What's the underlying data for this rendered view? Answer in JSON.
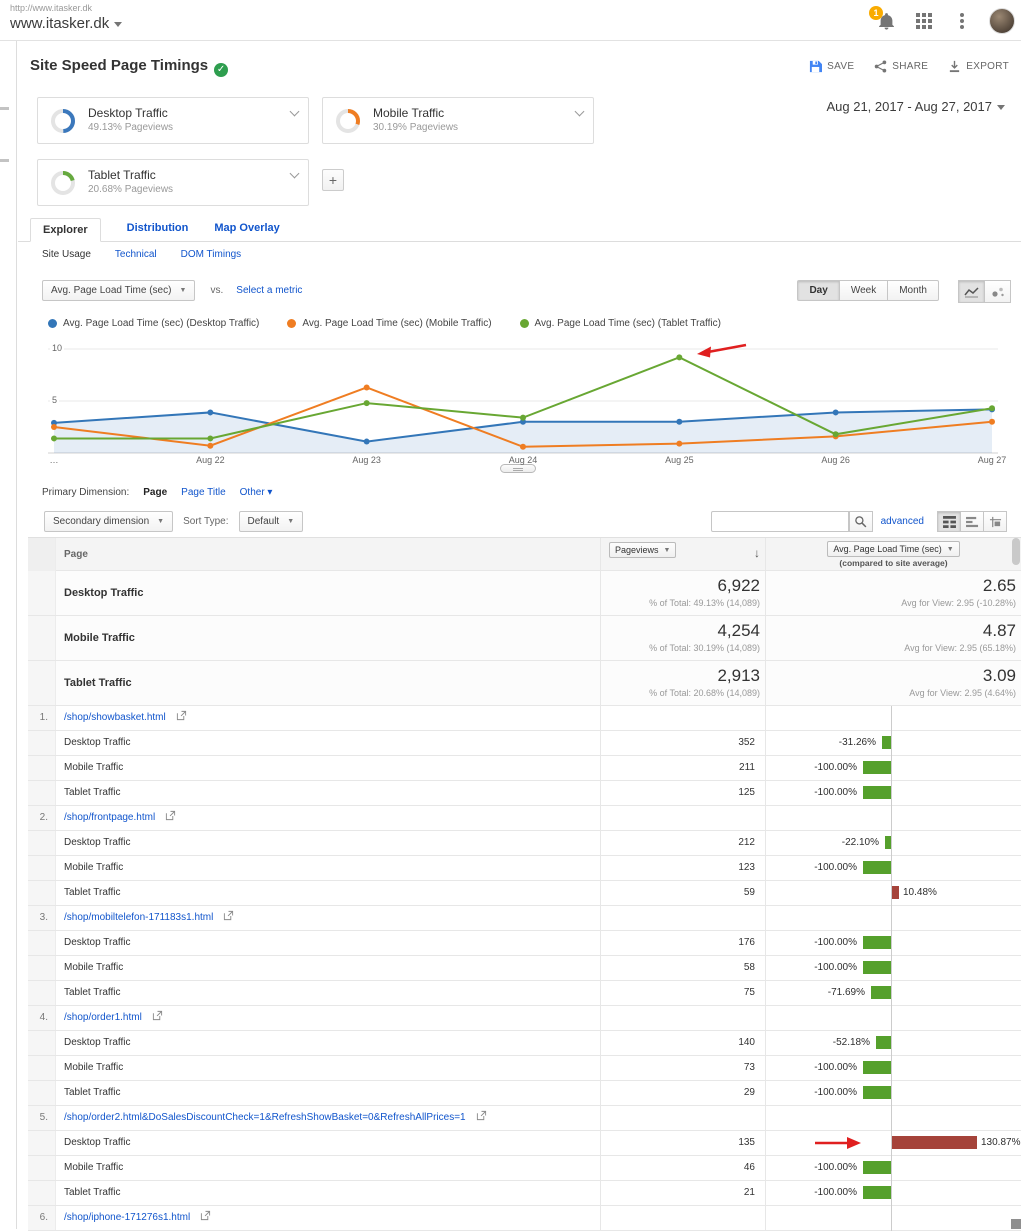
{
  "topbar": {
    "url": "http://www.itasker.dk",
    "account": "www.itasker.dk",
    "notification_count": "1"
  },
  "header": {
    "title": "Site Speed Page Timings",
    "save_label": "SAVE",
    "share_label": "SHARE",
    "export_label": "EXPORT"
  },
  "date_range": "Aug 21, 2017 - Aug 27, 2017",
  "add_segment_label": "+",
  "segments": [
    {
      "name": "Desktop Traffic",
      "detail": "49.13% Pageviews",
      "color": "#3b78bc",
      "fraction": 0.4913
    },
    {
      "name": "Mobile Traffic",
      "detail": "30.19% Pageviews",
      "color": "#ef7d22",
      "fraction": 0.3019
    },
    {
      "name": "Tablet Traffic",
      "detail": "20.68% Pageviews",
      "color": "#66a93f",
      "fraction": 0.2068
    }
  ],
  "tabs": [
    {
      "label": "Explorer",
      "active": true
    },
    {
      "label": "Distribution",
      "active": false
    },
    {
      "label": "Map Overlay",
      "active": false
    }
  ],
  "subtabs": [
    {
      "label": "Site Usage",
      "active": true
    },
    {
      "label": "Technical",
      "active": false
    },
    {
      "label": "DOM Timings",
      "active": false
    }
  ],
  "metric_bar": {
    "metric_dropdown": "Avg. Page Load Time (sec)",
    "vs_label": "vs.",
    "select_metric": "Select a metric",
    "granularity": [
      {
        "label": "Day",
        "active": true
      },
      {
        "label": "Week",
        "active": false
      },
      {
        "label": "Month",
        "active": false
      }
    ]
  },
  "chart_data": {
    "type": "line",
    "x": [
      "…",
      "Aug 22",
      "Aug 23",
      "Aug 24",
      "Aug 25",
      "Aug 26",
      "Aug 27"
    ],
    "ylim": [
      0,
      10
    ],
    "yticks": [
      {
        "v": 10,
        "label": "10"
      },
      {
        "v": 5,
        "label": "5"
      }
    ],
    "grid": true,
    "legend_position": "top",
    "series": [
      {
        "name": "Avg. Page Load Time (sec) (Desktop Traffic)",
        "color": "#3376b8",
        "area": true,
        "values": [
          2.9,
          3.9,
          1.1,
          3.0,
          3.0,
          3.9,
          4.2
        ]
      },
      {
        "name": "Avg. Page Load Time (sec) (Mobile Traffic)",
        "color": "#ef7d22",
        "area": false,
        "values": [
          2.5,
          0.7,
          6.3,
          0.6,
          0.9,
          1.6,
          3.0
        ]
      },
      {
        "name": "Avg. Page Load Time (sec) (Tablet Traffic)",
        "color": "#68a733",
        "area": false,
        "values": [
          1.4,
          1.4,
          4.8,
          3.4,
          9.2,
          1.8,
          4.3
        ]
      }
    ]
  },
  "annotations": [
    {
      "type": "arrow",
      "color": "#e01f1f",
      "points_to": "Tablet Traffic chart peak on Aug 25"
    },
    {
      "type": "arrow",
      "color": "#e01f1f",
      "points_to": "Desktop Traffic 130.87% bar in row 5"
    }
  ],
  "primary_dimension": {
    "label": "Primary Dimension:",
    "options": [
      {
        "label": "Page",
        "active": true
      },
      {
        "label": "Page Title",
        "active": false
      },
      {
        "label": "Other",
        "active": false,
        "caret": true
      }
    ]
  },
  "toolbar": {
    "secondary_dimension": "Secondary dimension",
    "sort_type_label": "Sort Type:",
    "sort_type_value": "Default",
    "search_value": "",
    "advanced_label": "advanced"
  },
  "table": {
    "page_header": "Page",
    "pageviews_header": "Pageviews",
    "metric_header": "Avg. Page Load Time (sec)",
    "metric_subheader": "(compared to site average)",
    "summary": [
      {
        "name": "Desktop Traffic",
        "pageviews": "6,922",
        "pageviews_note": "% of Total: 49.13% (14,089)",
        "avg": "2.65",
        "avg_note": "Avg for View: 2.95 (-10.28%)"
      },
      {
        "name": "Mobile Traffic",
        "pageviews": "4,254",
        "pageviews_note": "% of Total: 30.19% (14,089)",
        "avg": "4.87",
        "avg_note": "Avg for View: 2.95 (65.18%)"
      },
      {
        "name": "Tablet Traffic",
        "pageviews": "2,913",
        "pageviews_note": "% of Total: 20.68% (14,089)",
        "avg": "3.09",
        "avg_note": "Avg for View: 2.95 (4.64%)"
      }
    ],
    "groups": [
      {
        "index": "1.",
        "page": "/shop/showbasket.html",
        "rows": [
          {
            "label": "Desktop Traffic",
            "pageviews": "352",
            "delta_pct": -31.26,
            "delta_label": "-31.26%"
          },
          {
            "label": "Mobile Traffic",
            "pageviews": "211",
            "delta_pct": -100.0,
            "delta_label": "-100.00%"
          },
          {
            "label": "Tablet Traffic",
            "pageviews": "125",
            "delta_pct": -100.0,
            "delta_label": "-100.00%"
          }
        ]
      },
      {
        "index": "2.",
        "page": "/shop/frontpage.html",
        "rows": [
          {
            "label": "Desktop Traffic",
            "pageviews": "212",
            "delta_pct": -22.1,
            "delta_label": "-22.10%"
          },
          {
            "label": "Mobile Traffic",
            "pageviews": "123",
            "delta_pct": -100.0,
            "delta_label": "-100.00%"
          },
          {
            "label": "Tablet Traffic",
            "pageviews": "59",
            "delta_pct": 10.48,
            "delta_label": "10.48%"
          }
        ]
      },
      {
        "index": "3.",
        "page": "/shop/mobiltelefon-171183s1.html",
        "rows": [
          {
            "label": "Desktop Traffic",
            "pageviews": "176",
            "delta_pct": -100.0,
            "delta_label": "-100.00%"
          },
          {
            "label": "Mobile Traffic",
            "pageviews": "58",
            "delta_pct": -100.0,
            "delta_label": "-100.00%"
          },
          {
            "label": "Tablet Traffic",
            "pageviews": "75",
            "delta_pct": -71.69,
            "delta_label": "-71.69%"
          }
        ]
      },
      {
        "index": "4.",
        "page": "/shop/order1.html",
        "rows": [
          {
            "label": "Desktop Traffic",
            "pageviews": "140",
            "delta_pct": -52.18,
            "delta_label": "-52.18%"
          },
          {
            "label": "Mobile Traffic",
            "pageviews": "73",
            "delta_pct": -100.0,
            "delta_label": "-100.00%"
          },
          {
            "label": "Tablet Traffic",
            "pageviews": "29",
            "delta_pct": -100.0,
            "delta_label": "-100.00%"
          }
        ]
      },
      {
        "index": "5.",
        "page": "/shop/order2.html&DoSalesDiscountCheck=1&RefreshShowBasket=0&RefreshAllPrices=1",
        "rows": [
          {
            "label": "Desktop Traffic",
            "pageviews": "135",
            "delta_pct": 130.87,
            "delta_label": "130.87%",
            "annotated": true
          },
          {
            "label": "Mobile Traffic",
            "pageviews": "46",
            "delta_pct": -100.0,
            "delta_label": "-100.00%"
          },
          {
            "label": "Tablet Traffic",
            "pageviews": "21",
            "delta_pct": -100.0,
            "delta_label": "-100.00%"
          }
        ]
      },
      {
        "index": "6.",
        "page": "/shop/iphone-171276s1.html",
        "rows": []
      }
    ]
  },
  "colors": {
    "positive_bar": "#a5433a",
    "negative_bar": "#55a02c",
    "link": "#1155cc",
    "accent_blue": "#4285f4",
    "notification_badge": "#f9ab00",
    "check_badge": "#2e9e4f"
  }
}
